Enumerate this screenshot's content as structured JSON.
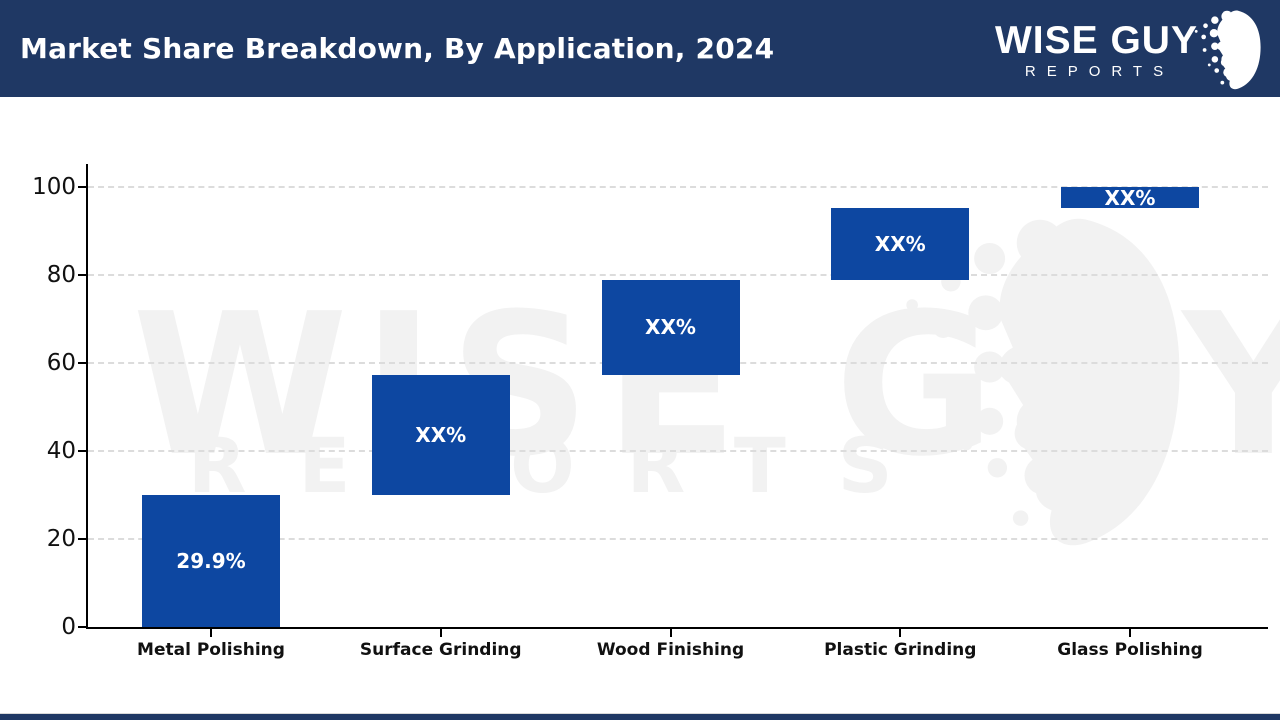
{
  "header": {
    "title": "Market Share Breakdown, By Application, 2024"
  },
  "logo": {
    "line1": "WISE GUY",
    "line2": "REPORTS"
  },
  "watermark": {
    "line1": "WISE GUY",
    "line2": "REPORTS"
  },
  "chart_data": {
    "type": "bar",
    "subtype": "floating-stacked-waterfall",
    "title": "Market Share Breakdown, By Application, 2024",
    "categories": [
      "Metal Polishing",
      "Surface Grinding",
      "Wood Finishing",
      "Plastic Grinding",
      "Glass Polishing"
    ],
    "bars": [
      {
        "category": "Metal Polishing",
        "start": 0,
        "end": 29.9,
        "label": "29.9%"
      },
      {
        "category": "Surface Grinding",
        "start": 29.9,
        "end": 57.3,
        "label": "XX%"
      },
      {
        "category": "Wood Finishing",
        "start": 57.3,
        "end": 78.9,
        "label": "XX%"
      },
      {
        "category": "Plastic Grinding",
        "start": 78.9,
        "end": 95.2,
        "label": "XX%"
      },
      {
        "category": "Glass Polishing",
        "start": 95.2,
        "end": 100.0,
        "label": "XX%"
      }
    ],
    "yticks": [
      0,
      20,
      40,
      60,
      80,
      100
    ],
    "ylim": [
      0,
      105
    ],
    "xlabel": "",
    "ylabel": "",
    "grid": true,
    "grid_style": "dashed",
    "legend": "none"
  },
  "colors": {
    "header_bg": "#1f3864",
    "footer_bg": "#1f3864",
    "bar": "#0d47a1",
    "bar_label": "#ffffff",
    "grid": "#dcdcdc",
    "axis": "#000000",
    "watermark": "#f2f2f2"
  }
}
